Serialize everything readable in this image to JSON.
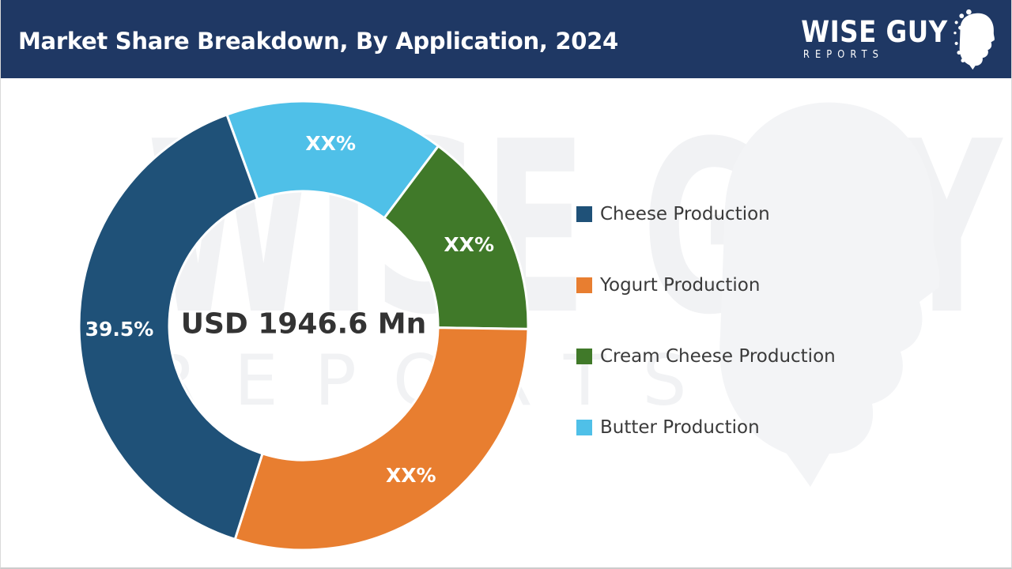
{
  "header": {
    "title": "Market Share Breakdown, By Application, 2024",
    "logo": {
      "line1": "WISE GUY",
      "line2": "REPORTS"
    }
  },
  "watermark": {
    "line1": "WISE GUY",
    "line2": "REPORTS"
  },
  "chart_data": {
    "type": "donut",
    "title": "Market Share Breakdown, By Application, 2024",
    "center_label": "USD 1946.6 Mn",
    "start_angle_deg": 340,
    "clockwise": true,
    "slices": [
      {
        "name": "Butter Production",
        "percent": 15.8,
        "label": "XX%",
        "color": "#4FC0E8"
      },
      {
        "name": "Cream Cheese Production",
        "percent": 15.0,
        "label": "XX%",
        "color": "#407929"
      },
      {
        "name": "Yogurt Production",
        "percent": 29.7,
        "label": "XX%",
        "color": "#E87E30"
      },
      {
        "name": "Cheese Production",
        "percent": 39.5,
        "label": "39.5%",
        "color": "#1F5178"
      }
    ],
    "legend_order": [
      "Cheese Production",
      "Yogurt Production",
      "Cream Cheese Production",
      "Butter Production"
    ],
    "legend_position": "right"
  },
  "colors": {
    "header_bg": "#1F3864",
    "header_text": "#ffffff",
    "center_text": "#333333",
    "legend_text": "#3a3a3a",
    "watermark": "#f1f2f4",
    "slice_gap": "#ffffff"
  }
}
